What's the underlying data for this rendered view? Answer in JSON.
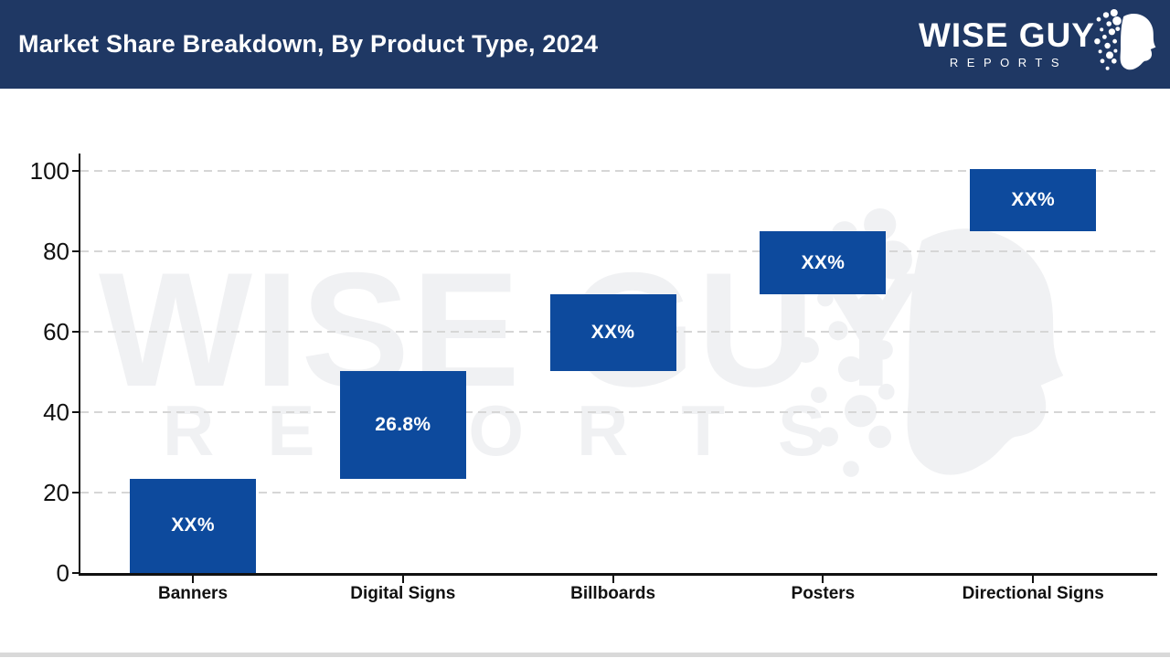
{
  "header": {
    "title": "Market Share Breakdown, By Product Type, 2024",
    "bg_color": "#1f3864",
    "logo": {
      "line1": "WISE GUY",
      "line2": "REPORTS",
      "icon": "head-profile-dots-icon"
    }
  },
  "watermark": {
    "line1": "WISE GUY",
    "line2": "REPORTS",
    "color": "#f0f1f3"
  },
  "chart_data": {
    "type": "bar",
    "subtype": "waterfall",
    "title": "Market Share Breakdown, By Product Type, 2024",
    "categories": [
      "Banners",
      "Digital Signs",
      "Billboards",
      "Posters",
      "Directional Signs"
    ],
    "series": [
      {
        "name": "Market Share (%)",
        "bars": [
          {
            "category": "Banners",
            "start": 0,
            "end": 23.5,
            "label": "XX%"
          },
          {
            "category": "Digital Signs",
            "start": 23.5,
            "end": 50.3,
            "label": "26.8%",
            "value": 26.8
          },
          {
            "category": "Billboards",
            "start": 50.3,
            "end": 69.3,
            "label": "XX%"
          },
          {
            "category": "Posters",
            "start": 69.3,
            "end": 84.9,
            "label": "XX%"
          },
          {
            "category": "Directional Signs",
            "start": 84.9,
            "end": 100.5,
            "label": "XX%"
          }
        ]
      }
    ],
    "xlabel": "",
    "ylabel": "",
    "ylim": [
      0,
      105
    ],
    "yticks": [
      0,
      20,
      40,
      60,
      80,
      100
    ],
    "grid": "horizontal dashed",
    "legend": "none",
    "bar_color": "#0d4a9d",
    "bar_label_color": "#ffffff",
    "gridline_color": "#d6d6d6",
    "axis_color": "#111111"
  }
}
